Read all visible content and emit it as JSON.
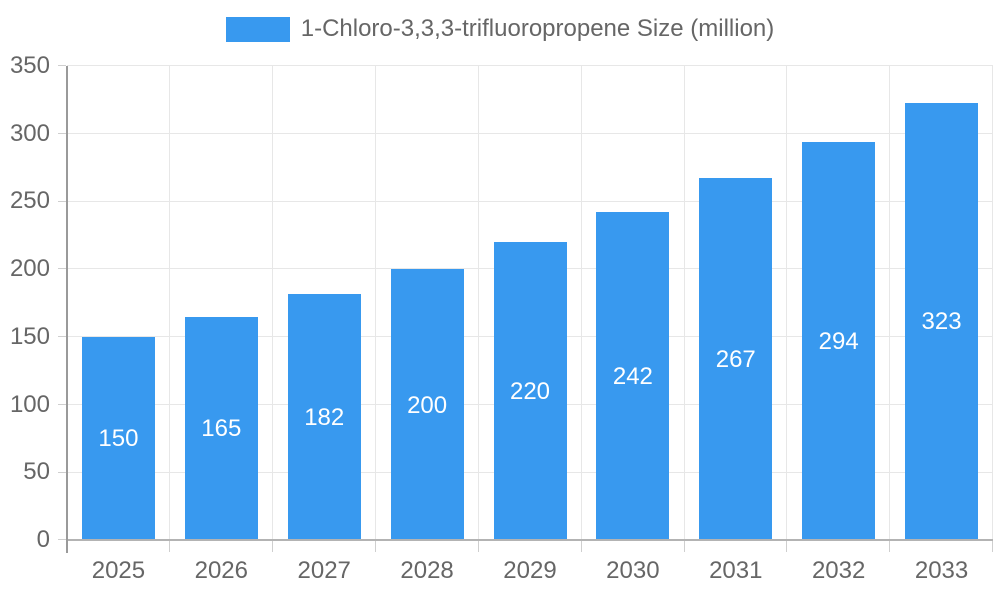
{
  "colors": {
    "bar": "#3899EF",
    "grid": "#E7E7E7",
    "y_axis_line": "#9A9A9A",
    "x_axis_line": "#B3B3B3",
    "tick": "#CFCFCF",
    "axis_text": "#666666",
    "bar_label_text": "#FFFFFF",
    "background": "#FFFFFF"
  },
  "legend": {
    "swatch": "legend-color-swatch"
  },
  "chart_data": {
    "type": "bar",
    "title": "1-Chloro-3,3,3-trifluoropropene Size (million)",
    "categories": [
      "2025",
      "2026",
      "2027",
      "2028",
      "2029",
      "2030",
      "2031",
      "2032",
      "2033"
    ],
    "series": [
      {
        "name": "1-Chloro-3,3,3-trifluoropropene Size (million)",
        "values": [
          150,
          165,
          182,
          200,
          220,
          242,
          267,
          294,
          323
        ]
      }
    ],
    "bar_value_labels": [
      150,
      165,
      182,
      200,
      220,
      242,
      267,
      294,
      323
    ],
    "xlabel": "",
    "ylabel": "",
    "ylim": [
      0,
      350
    ],
    "ytick_step": 50,
    "yticks": [
      0,
      50,
      100,
      150,
      200,
      250,
      300,
      350
    ],
    "grid": true,
    "legend_position": "top"
  }
}
